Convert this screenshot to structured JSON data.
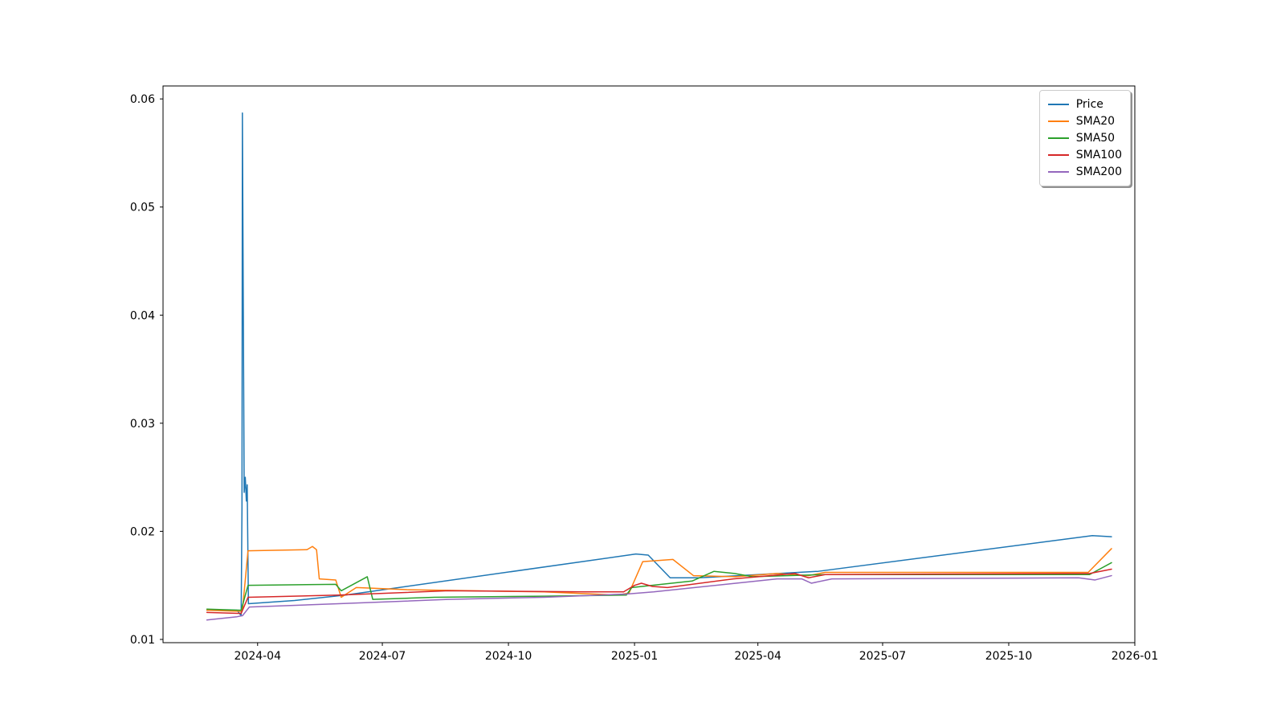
{
  "figure": {
    "background": "#ffffff",
    "spine_color": "#000000",
    "tick_label_color": "#000000"
  },
  "chart_data": {
    "type": "line",
    "title": "",
    "xlabel": "",
    "ylabel": "",
    "grid": false,
    "x_unit": "days since 2024-01-01",
    "xlim": [
      22,
      731
    ],
    "ylim": [
      0.0097,
      0.0612
    ],
    "x_ticks": [
      {
        "d": 91,
        "label": "2024-04"
      },
      {
        "d": 182,
        "label": "2024-07"
      },
      {
        "d": 274,
        "label": "2024-10"
      },
      {
        "d": 366,
        "label": "2025-01"
      },
      {
        "d": 456,
        "label": "2025-04"
      },
      {
        "d": 547,
        "label": "2025-07"
      },
      {
        "d": 639,
        "label": "2025-10"
      },
      {
        "d": 731,
        "label": "2026-01"
      }
    ],
    "y_ticks": [
      {
        "v": 0.01,
        "label": "0.01"
      },
      {
        "v": 0.02,
        "label": "0.02"
      },
      {
        "v": 0.03,
        "label": "0.03"
      },
      {
        "v": 0.04,
        "label": "0.04"
      },
      {
        "v": 0.05,
        "label": "0.05"
      },
      {
        "v": 0.06,
        "label": "0.06"
      }
    ],
    "legend": {
      "position": "upper right",
      "entries": [
        "Price",
        "SMA20",
        "SMA50",
        "SMA100",
        "SMA200"
      ]
    },
    "series": [
      {
        "name": "Price",
        "color": "#1f77b4",
        "linewidth": 1.5,
        "points": [
          [
            54,
            0.0127
          ],
          [
            76,
            0.0127
          ],
          [
            79,
            0.0122
          ],
          [
            79.6,
            0.0222
          ],
          [
            79.9,
            0.0587
          ],
          [
            81.2,
            0.0236
          ],
          [
            82,
            0.025
          ],
          [
            82.8,
            0.0228
          ],
          [
            83.4,
            0.0243
          ],
          [
            84.3,
            0.0133
          ],
          [
            118,
            0.0136
          ],
          [
            155,
            0.0141
          ],
          [
            367,
            0.0179
          ],
          [
            376,
            0.0178
          ],
          [
            392,
            0.0157
          ],
          [
            413,
            0.0157
          ],
          [
            500,
            0.0163
          ],
          [
            700,
            0.0196
          ],
          [
            714,
            0.0195
          ]
        ]
      },
      {
        "name": "SMA20",
        "color": "#ff7f0e",
        "linewidth": 1.5,
        "points": [
          [
            54,
            0.0127
          ],
          [
            79,
            0.0126
          ],
          [
            80,
            0.0128
          ],
          [
            84,
            0.0182
          ],
          [
            127,
            0.0183
          ],
          [
            131,
            0.0186
          ],
          [
            134,
            0.0183
          ],
          [
            136,
            0.0156
          ],
          [
            148,
            0.0155
          ],
          [
            152,
            0.0139
          ],
          [
            163,
            0.0148
          ],
          [
            200,
            0.0146
          ],
          [
            300,
            0.0144
          ],
          [
            354,
            0.0141
          ],
          [
            362,
            0.0143
          ],
          [
            372,
            0.0172
          ],
          [
            394,
            0.0174
          ],
          [
            409,
            0.0159
          ],
          [
            440,
            0.0158
          ],
          [
            470,
            0.0161
          ],
          [
            493,
            0.0159
          ],
          [
            505,
            0.0162
          ],
          [
            697,
            0.0162
          ],
          [
            714,
            0.0184
          ]
        ]
      },
      {
        "name": "SMA50",
        "color": "#2ca02c",
        "linewidth": 1.5,
        "points": [
          [
            54,
            0.0128
          ],
          [
            79,
            0.0127
          ],
          [
            84,
            0.015
          ],
          [
            148,
            0.0151
          ],
          [
            152,
            0.0145
          ],
          [
            171,
            0.0158
          ],
          [
            175,
            0.0137
          ],
          [
            220,
            0.0139
          ],
          [
            300,
            0.014
          ],
          [
            360,
            0.0141
          ],
          [
            364,
            0.0148
          ],
          [
            408,
            0.0154
          ],
          [
            424,
            0.0163
          ],
          [
            439,
            0.0161
          ],
          [
            452,
            0.0158
          ],
          [
            505,
            0.016
          ],
          [
            698,
            0.016
          ],
          [
            714,
            0.0171
          ]
        ]
      },
      {
        "name": "SMA100",
        "color": "#d62728",
        "linewidth": 1.5,
        "points": [
          [
            54,
            0.0125
          ],
          [
            79,
            0.0124
          ],
          [
            84,
            0.0139
          ],
          [
            150,
            0.0141
          ],
          [
            230,
            0.0145
          ],
          [
            330,
            0.0144
          ],
          [
            358,
            0.0144
          ],
          [
            366,
            0.015
          ],
          [
            371,
            0.0152
          ],
          [
            379,
            0.0149
          ],
          [
            390,
            0.0148
          ],
          [
            438,
            0.0156
          ],
          [
            483,
            0.0161
          ],
          [
            493,
            0.0157
          ],
          [
            505,
            0.016
          ],
          [
            698,
            0.0161
          ],
          [
            714,
            0.0165
          ]
        ]
      },
      {
        "name": "SMA200",
        "color": "#9467bd",
        "linewidth": 1.5,
        "points": [
          [
            54,
            0.0118
          ],
          [
            76,
            0.0121
          ],
          [
            80,
            0.0122
          ],
          [
            85,
            0.013
          ],
          [
            150,
            0.0133
          ],
          [
            230,
            0.0137
          ],
          [
            300,
            0.0139
          ],
          [
            360,
            0.0142
          ],
          [
            380,
            0.0144
          ],
          [
            440,
            0.0152
          ],
          [
            470,
            0.0156
          ],
          [
            488,
            0.0156
          ],
          [
            495,
            0.0152
          ],
          [
            510,
            0.0156
          ],
          [
            690,
            0.0157
          ],
          [
            702,
            0.0155
          ],
          [
            714,
            0.0159
          ]
        ]
      }
    ]
  }
}
